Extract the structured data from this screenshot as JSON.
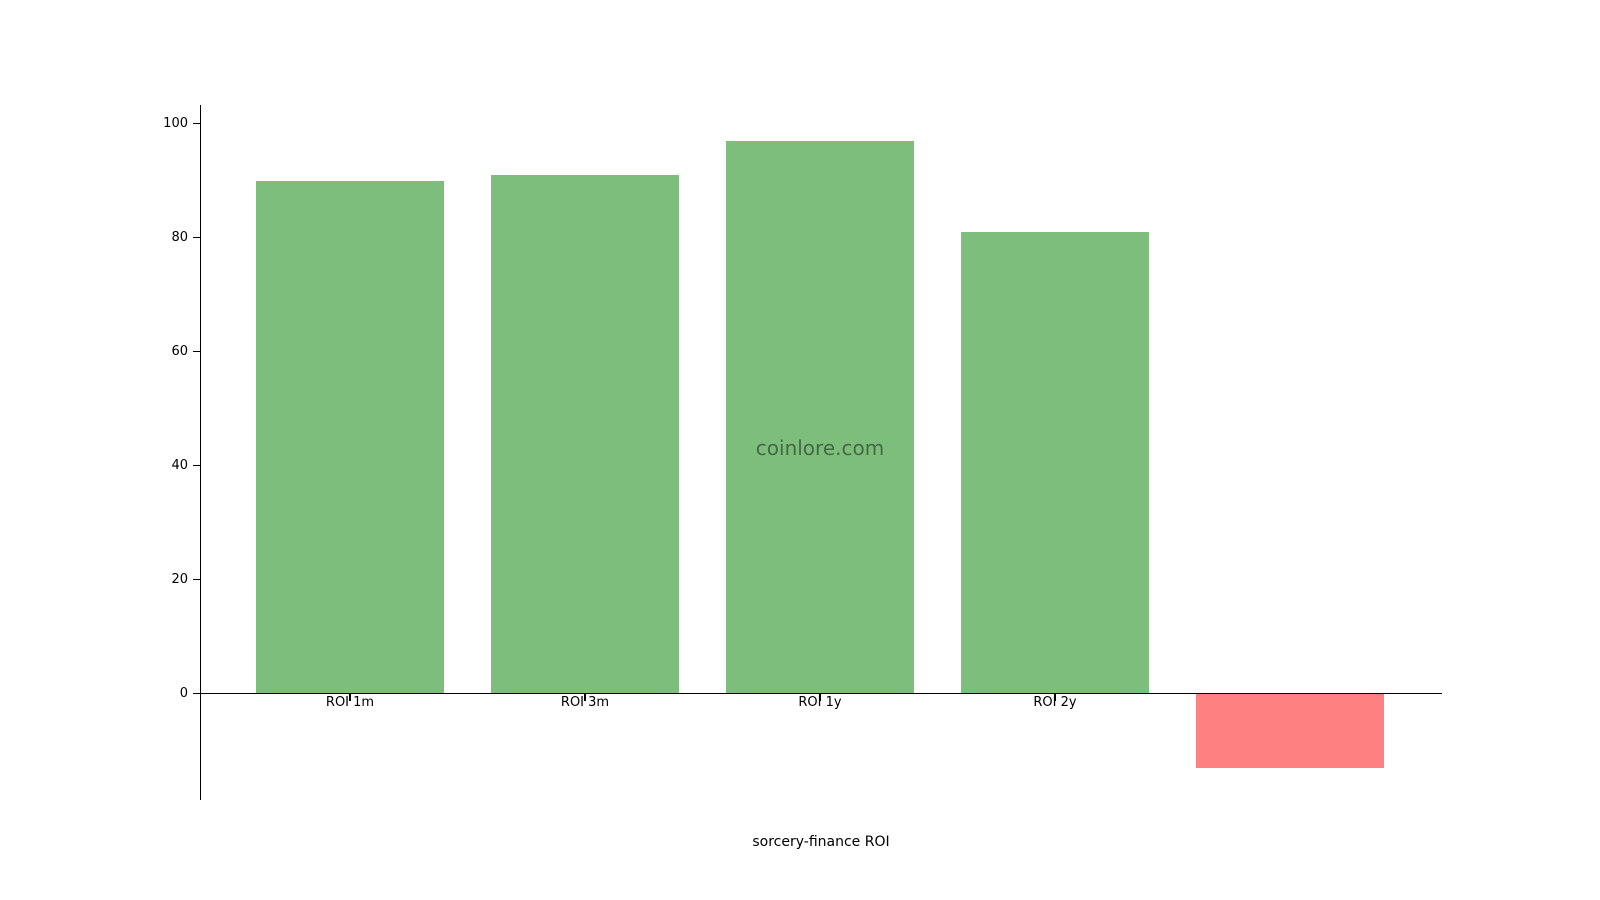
{
  "watermark": "coinlore.com",
  "colors": {
    "positive_bar": "#7dbe7d",
    "negative_bar": "#ff8080",
    "axis": "#000000",
    "tick_label": "#000000",
    "watermark": "rgba(0,0,0,0.45)"
  },
  "chart_data": {
    "type": "bar",
    "title": "sorcery-finance ROI",
    "xlabel": "",
    "ylabel": "",
    "categories": [
      "ROI 1m",
      "ROI 3m",
      "ROI 1y",
      "ROI 2y",
      ""
    ],
    "values": [
      90,
      91,
      97,
      81,
      -13
    ],
    "bar_colors": [
      "positive",
      "positive",
      "positive",
      "positive",
      "negative"
    ],
    "yticks": [
      0,
      20,
      40,
      60,
      80,
      100
    ],
    "ylim": [
      -18,
      103
    ],
    "grid": false,
    "legend": null,
    "annotations": [
      "coinlore.com watermark centered on plot"
    ]
  }
}
